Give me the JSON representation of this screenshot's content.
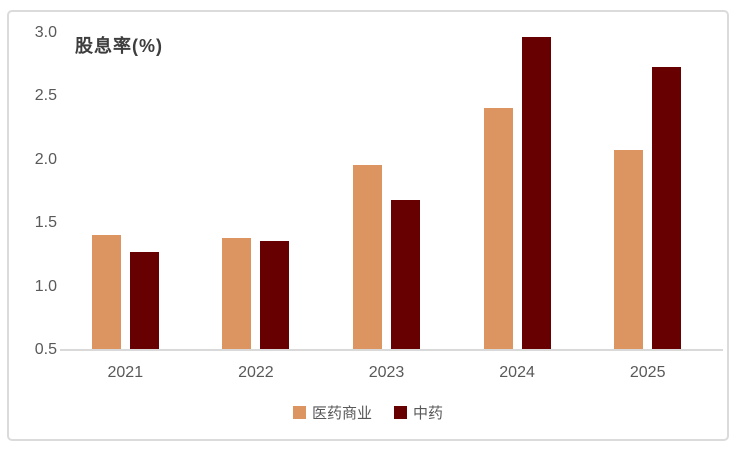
{
  "chart_data": {
    "type": "bar",
    "title": "股息率(%)",
    "categories": [
      "2021",
      "2022",
      "2023",
      "2024",
      "2025"
    ],
    "series": [
      {
        "name": "医药商业",
        "color": "#DC9560",
        "values": [
          1.41,
          1.38,
          1.96,
          2.41,
          2.08
        ]
      },
      {
        "name": "中药",
        "color": "#670101",
        "values": [
          1.27,
          1.36,
          1.68,
          2.97,
          2.73
        ]
      }
    ],
    "ylim": [
      0.5,
      3.0
    ],
    "yticks": [
      3.0,
      2.5,
      2.0,
      1.5,
      1.0,
      0.5
    ],
    "xlabel": "",
    "ylabel": "",
    "grid": false,
    "legend_position": "bottom"
  },
  "style": {
    "axis_text_color": "#595959",
    "title_color": "#3d3d3d",
    "baseline_color": "#d9d9d9",
    "border_color": "#dbdbdb",
    "background": "#ffffff"
  }
}
